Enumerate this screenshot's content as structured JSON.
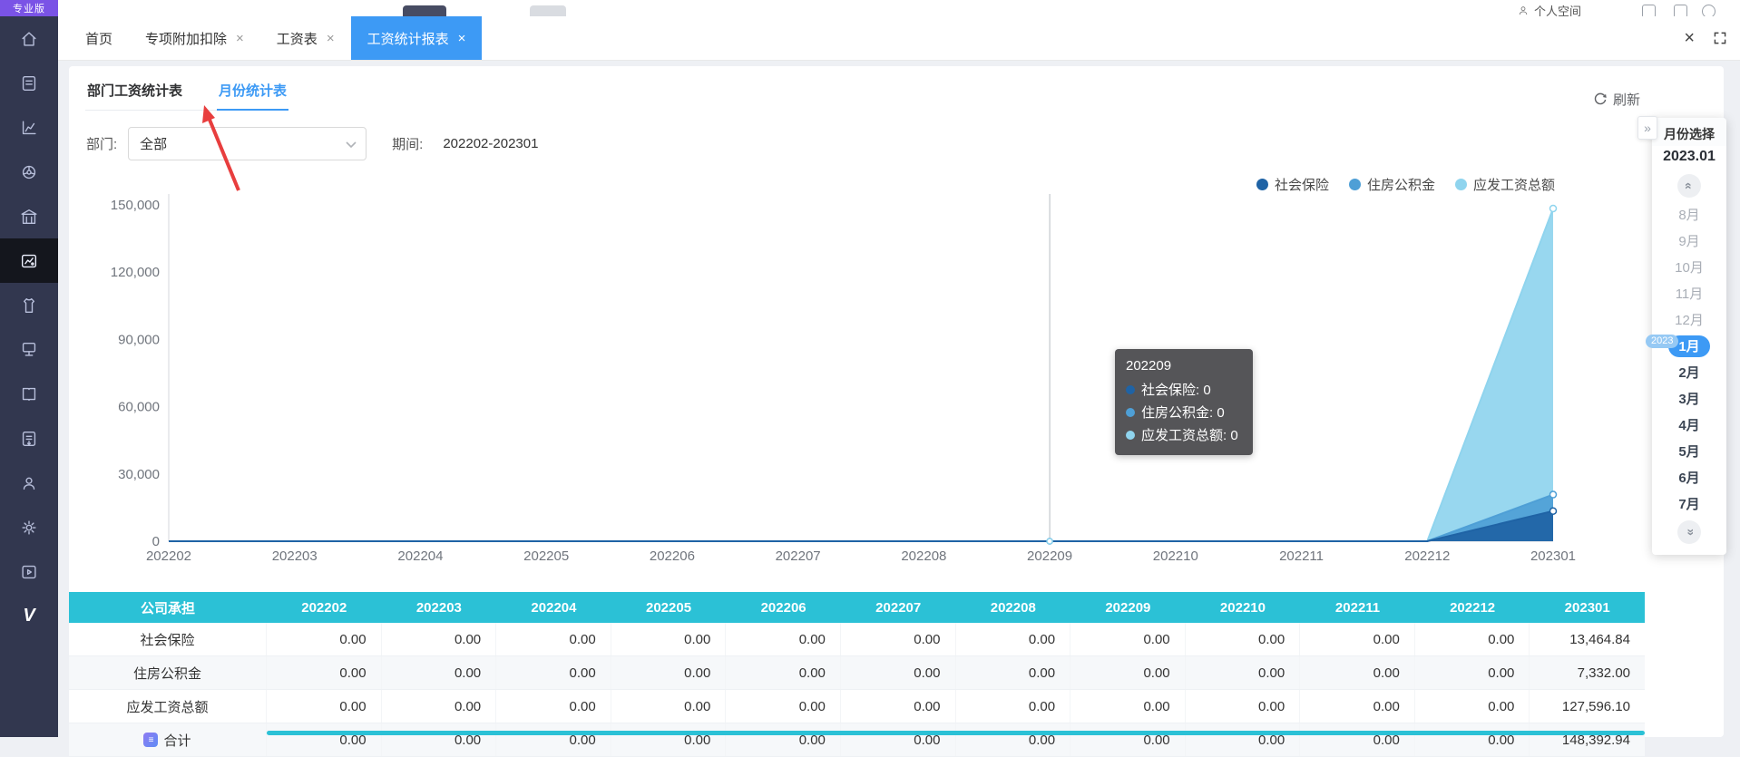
{
  "app": {
    "edition": "专业版",
    "workspace": "个人空间"
  },
  "sidebar": {
    "items": [
      {
        "name": "home",
        "active": false
      },
      {
        "name": "vouchers",
        "active": false
      },
      {
        "name": "reports",
        "active": false
      },
      {
        "name": "cockpit",
        "active": false
      },
      {
        "name": "invoices",
        "active": false
      },
      {
        "name": "salary-reports",
        "active": true
      },
      {
        "name": "inventory",
        "active": false
      },
      {
        "name": "terminal",
        "active": false
      },
      {
        "name": "ledger",
        "active": false
      },
      {
        "name": "checkout",
        "active": false
      },
      {
        "name": "contacts",
        "active": false
      },
      {
        "name": "settings",
        "active": false
      },
      {
        "name": "media",
        "active": false
      },
      {
        "name": "brand-v",
        "active": false,
        "glyph": "V"
      }
    ]
  },
  "tabs": [
    {
      "label": "首页",
      "closable": false,
      "active": false
    },
    {
      "label": "专项附加扣除",
      "closable": true,
      "active": false
    },
    {
      "label": "工资表",
      "closable": true,
      "active": false
    },
    {
      "label": "工资统计报表",
      "closable": true,
      "active": true
    }
  ],
  "subtabs": [
    {
      "label": "部门工资统计表",
      "active": false
    },
    {
      "label": "月份统计表",
      "active": true
    }
  ],
  "toolbar": {
    "refresh": "刷新"
  },
  "filters": {
    "department_label": "部门:",
    "department_value": "全部",
    "period_label": "期间:",
    "period_value": "202202-202301"
  },
  "chart_data": {
    "type": "area",
    "stacked": true,
    "x": [
      "202202",
      "202203",
      "202204",
      "202205",
      "202206",
      "202207",
      "202208",
      "202209",
      "202210",
      "202211",
      "202212",
      "202301"
    ],
    "series": [
      {
        "name": "社会保险",
        "color": "#1f63a5",
        "values": [
          0,
          0,
          0,
          0,
          0,
          0,
          0,
          0,
          0,
          0,
          0,
          13464.84
        ]
      },
      {
        "name": "住房公积金",
        "color": "#4e9fd6",
        "values": [
          0,
          0,
          0,
          0,
          0,
          0,
          0,
          0,
          0,
          0,
          0,
          7332.0
        ]
      },
      {
        "name": "应发工资总额",
        "color": "#8fd4ee",
        "values": [
          0,
          0,
          0,
          0,
          0,
          0,
          0,
          0,
          0,
          0,
          0,
          127596.1
        ]
      }
    ],
    "ylim": [
      0,
      150000
    ],
    "yticks": [
      "0",
      "30,000",
      "60,000",
      "90,000",
      "120,000",
      "150,000"
    ],
    "legend_position": "top-right",
    "grid": false,
    "tooltip": {
      "x": "202209",
      "lines": [
        {
          "label": "社会保险",
          "value": "0"
        },
        {
          "label": "住房公积金",
          "value": "0"
        },
        {
          "label": "应发工资总额",
          "value": "0"
        }
      ]
    }
  },
  "month_panel": {
    "title": "月份选择",
    "current": "2023.01",
    "year_badge": "2023",
    "months_prev": [
      "8月",
      "9月",
      "10月",
      "11月",
      "12月"
    ],
    "active_month": "1月",
    "months_next": [
      "2月",
      "3月",
      "4月",
      "5月",
      "6月",
      "7月"
    ]
  },
  "table": {
    "header": [
      "公司承担",
      "202202",
      "202203",
      "202204",
      "202205",
      "202206",
      "202207",
      "202208",
      "202209",
      "202210",
      "202211",
      "202212",
      "202301"
    ],
    "rows": [
      {
        "label": "社会保险",
        "icon": false,
        "values": [
          "0.00",
          "0.00",
          "0.00",
          "0.00",
          "0.00",
          "0.00",
          "0.00",
          "0.00",
          "0.00",
          "0.00",
          "0.00",
          "13,464.84"
        ]
      },
      {
        "label": "住房公积金",
        "icon": false,
        "values": [
          "0.00",
          "0.00",
          "0.00",
          "0.00",
          "0.00",
          "0.00",
          "0.00",
          "0.00",
          "0.00",
          "0.00",
          "0.00",
          "7,332.00"
        ]
      },
      {
        "label": "应发工资总额",
        "icon": false,
        "values": [
          "0.00",
          "0.00",
          "0.00",
          "0.00",
          "0.00",
          "0.00",
          "0.00",
          "0.00",
          "0.00",
          "0.00",
          "0.00",
          "127,596.10"
        ]
      },
      {
        "label": "合计",
        "icon": true,
        "values": [
          "0.00",
          "0.00",
          "0.00",
          "0.00",
          "0.00",
          "0.00",
          "0.00",
          "0.00",
          "0.00",
          "0.00",
          "0.00",
          "148,392.94"
        ]
      }
    ]
  },
  "icons": {
    "tab_close": "×",
    "window_close": "×",
    "collapse": "»",
    "scroll": "«"
  }
}
